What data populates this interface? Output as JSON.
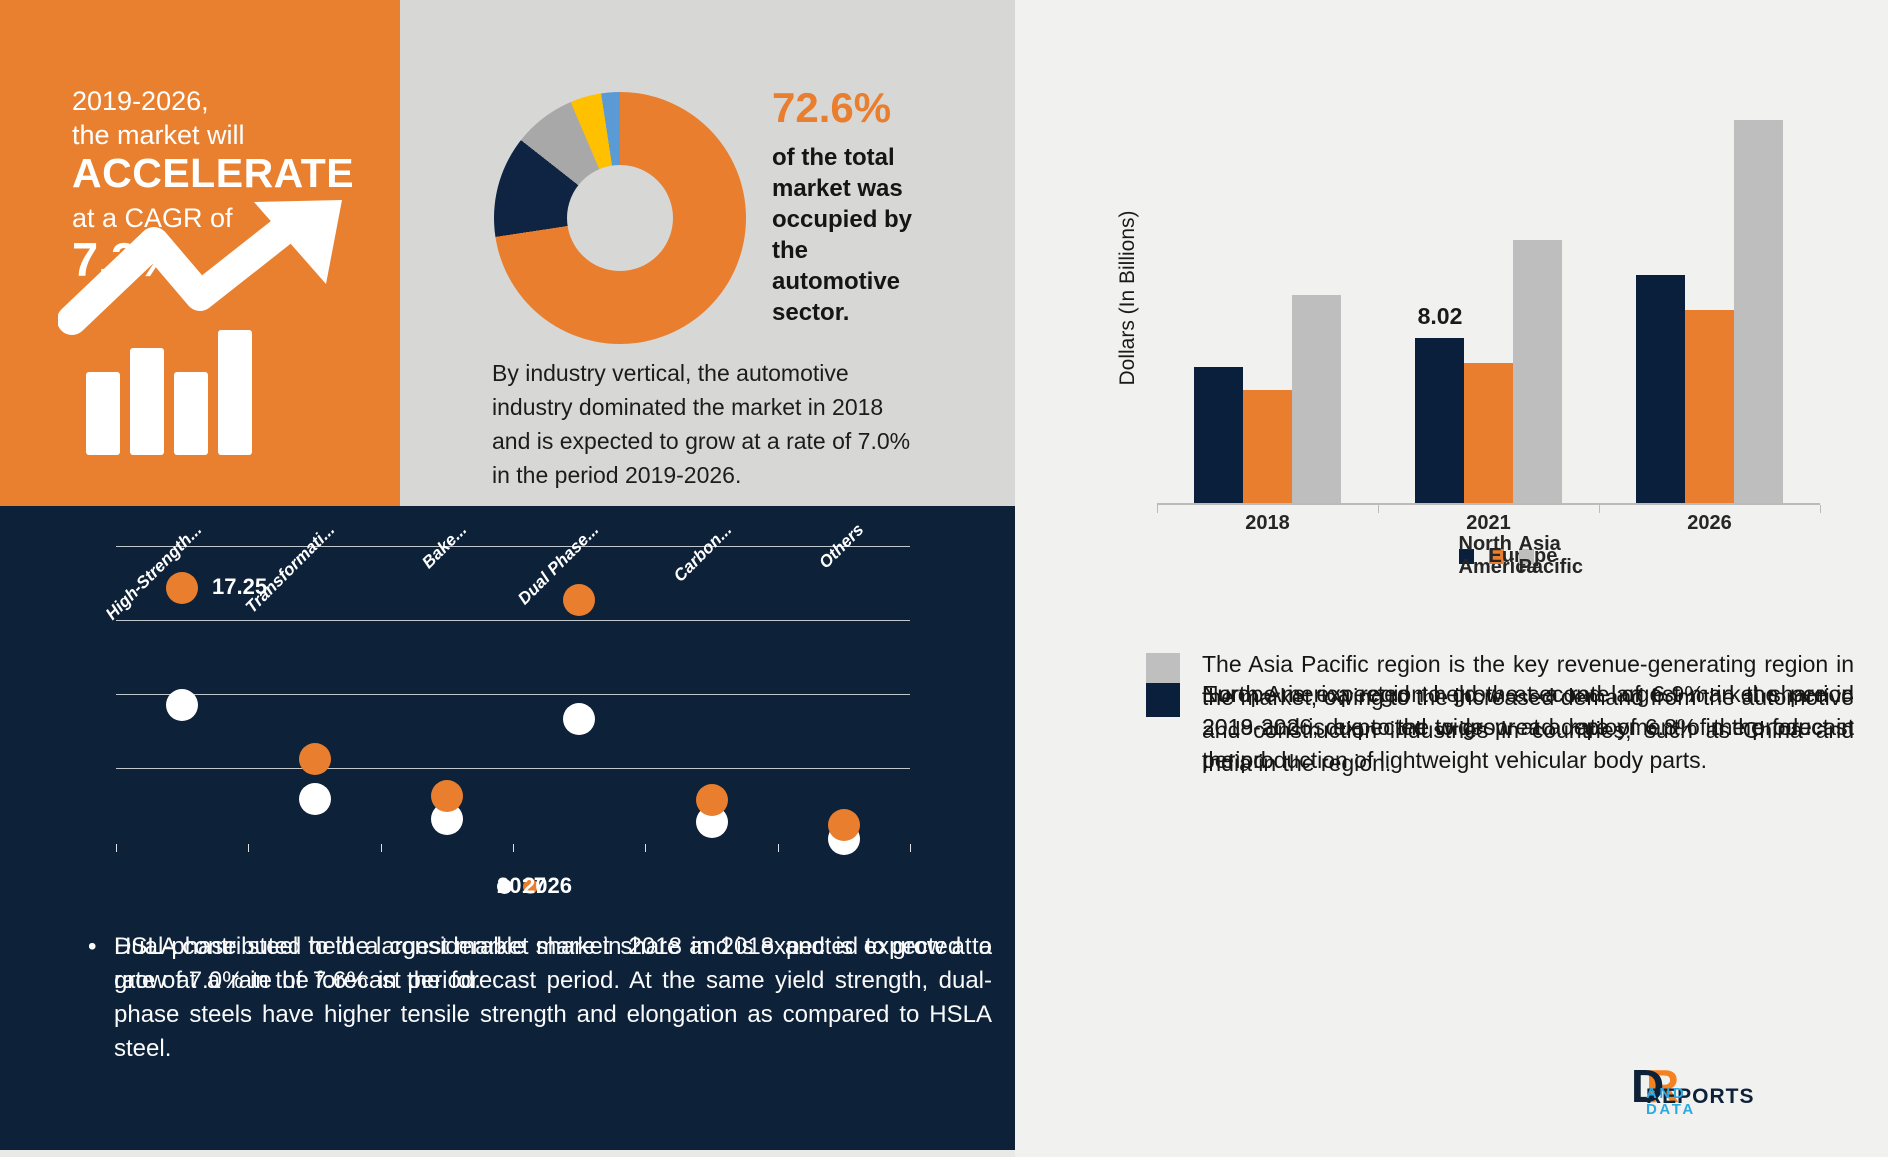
{
  "accelerate_block": {
    "line1": "2019-2026,",
    "line2": "the market will",
    "line3": "ACCELERATE",
    "line4": "at a CAGR of",
    "line5": "7.3%"
  },
  "donut_section": {
    "headline_value": "72.6%",
    "headline_text": "of the total market was occupied by the automotive sector.",
    "paragraph": "By industry vertical, the automotive industry dominated the market in 2018 and is expected to grow at a rate of 7.0% in the period 2019-2026."
  },
  "dot_plot": {
    "annotation": "17.25",
    "legend": [
      {
        "label": "2017",
        "color": "#FFFFFF"
      },
      {
        "label": "2026",
        "color": "#E87E2E"
      }
    ],
    "bullets": [
      "Dual-phase steel held a considerable market share in 2018 and is expected to grow at a rate of 7.6% in the forecast period. At the same yield strength, dual-phase steels have higher tensile strength and elongation as compared to HSLA steel.",
      "HSLA contributed to the largest market share in 2018 and is expected to grow at a rate of 7.0% in the forecast period."
    ]
  },
  "bar_section": {
    "ylabel": "Dollars (In Billions)",
    "annotation": "8.02"
  },
  "region_bullets": [
    {
      "color": "#BFBFBF",
      "text": "The Asia Pacific region is the key revenue-generating region in the market, owing to the increased demand from the automotive and construction industries in countries, such as China and India in the region."
    },
    {
      "color": "#E87E2E",
      "text": "Europe is expected to grow at a rate of 6.9% in the period 2019-2026, due to the widespread deployment of the product in the production of lightweight vehicular body parts."
    },
    {
      "color": "#0A1F3C",
      "text": "North America region held the second largest market share in 2018 and is expected to grow at a rate of 6.8% in the forecast period."
    }
  ],
  "logo": {
    "mono_r": "R",
    "mono_d": "D",
    "name_top": "REPORTS",
    "name_bottom": "AND DATA"
  },
  "chart_data": [
    {
      "type": "pie",
      "style": "donut",
      "title": "",
      "segments": [
        {
          "label": "Automotive sector",
          "value": 72.6,
          "color": "#E87E2E"
        },
        {
          "label": "unlabeled-segment-2",
          "value": 13.0,
          "color": "#0E2442"
        },
        {
          "label": "unlabeled-segment-3",
          "value": 8.0,
          "color": "#A8A8A8"
        },
        {
          "label": "unlabeled-segment-4",
          "value": 4.0,
          "color": "#FFC000"
        },
        {
          "label": "unlabeled-segment-5",
          "value": 2.4,
          "color": "#5B9BD5"
        }
      ]
    },
    {
      "type": "scatter",
      "categories": [
        "High-Strength...",
        "Transformati...",
        "Bake...",
        "Dual Phase...",
        "Carbon...",
        "Others"
      ],
      "series": [
        {
          "name": "2017",
          "color": "#FFFFFF",
          "values": [
            9.3,
            3.0,
            1.6,
            8.4,
            1.4,
            0.3
          ]
        },
        {
          "name": "2026",
          "color": "#E87E2E",
          "values": [
            17.25,
            5.7,
            3.2,
            16.4,
            2.9,
            1.2
          ]
        }
      ],
      "ylim": [
        0,
        20
      ],
      "gridline_step": 5,
      "grid": true,
      "legend_position": "bottom",
      "data_labels": [
        {
          "series": "2026",
          "category": "High-Strength...",
          "text": "17.25"
        }
      ]
    },
    {
      "type": "bar",
      "categories": [
        "2018",
        "2021",
        "2026"
      ],
      "series": [
        {
          "name": "North America",
          "color": "#0A1F3C",
          "values": [
            6.6,
            8.02,
            11.1
          ]
        },
        {
          "name": "Europe",
          "color": "#E87E2E",
          "values": [
            5.5,
            6.8,
            9.4
          ]
        },
        {
          "name": "Asia Pacific",
          "color": "#BEBEBE",
          "values": [
            10.1,
            12.8,
            18.6
          ]
        }
      ],
      "xlabel": "",
      "ylabel": "Dollars (In Billions)",
      "ylim": [
        0,
        20
      ],
      "grid": false,
      "legend_position": "bottom",
      "data_labels": [
        {
          "series": "North America",
          "category": "2021",
          "text": "8.02"
        }
      ]
    }
  ]
}
